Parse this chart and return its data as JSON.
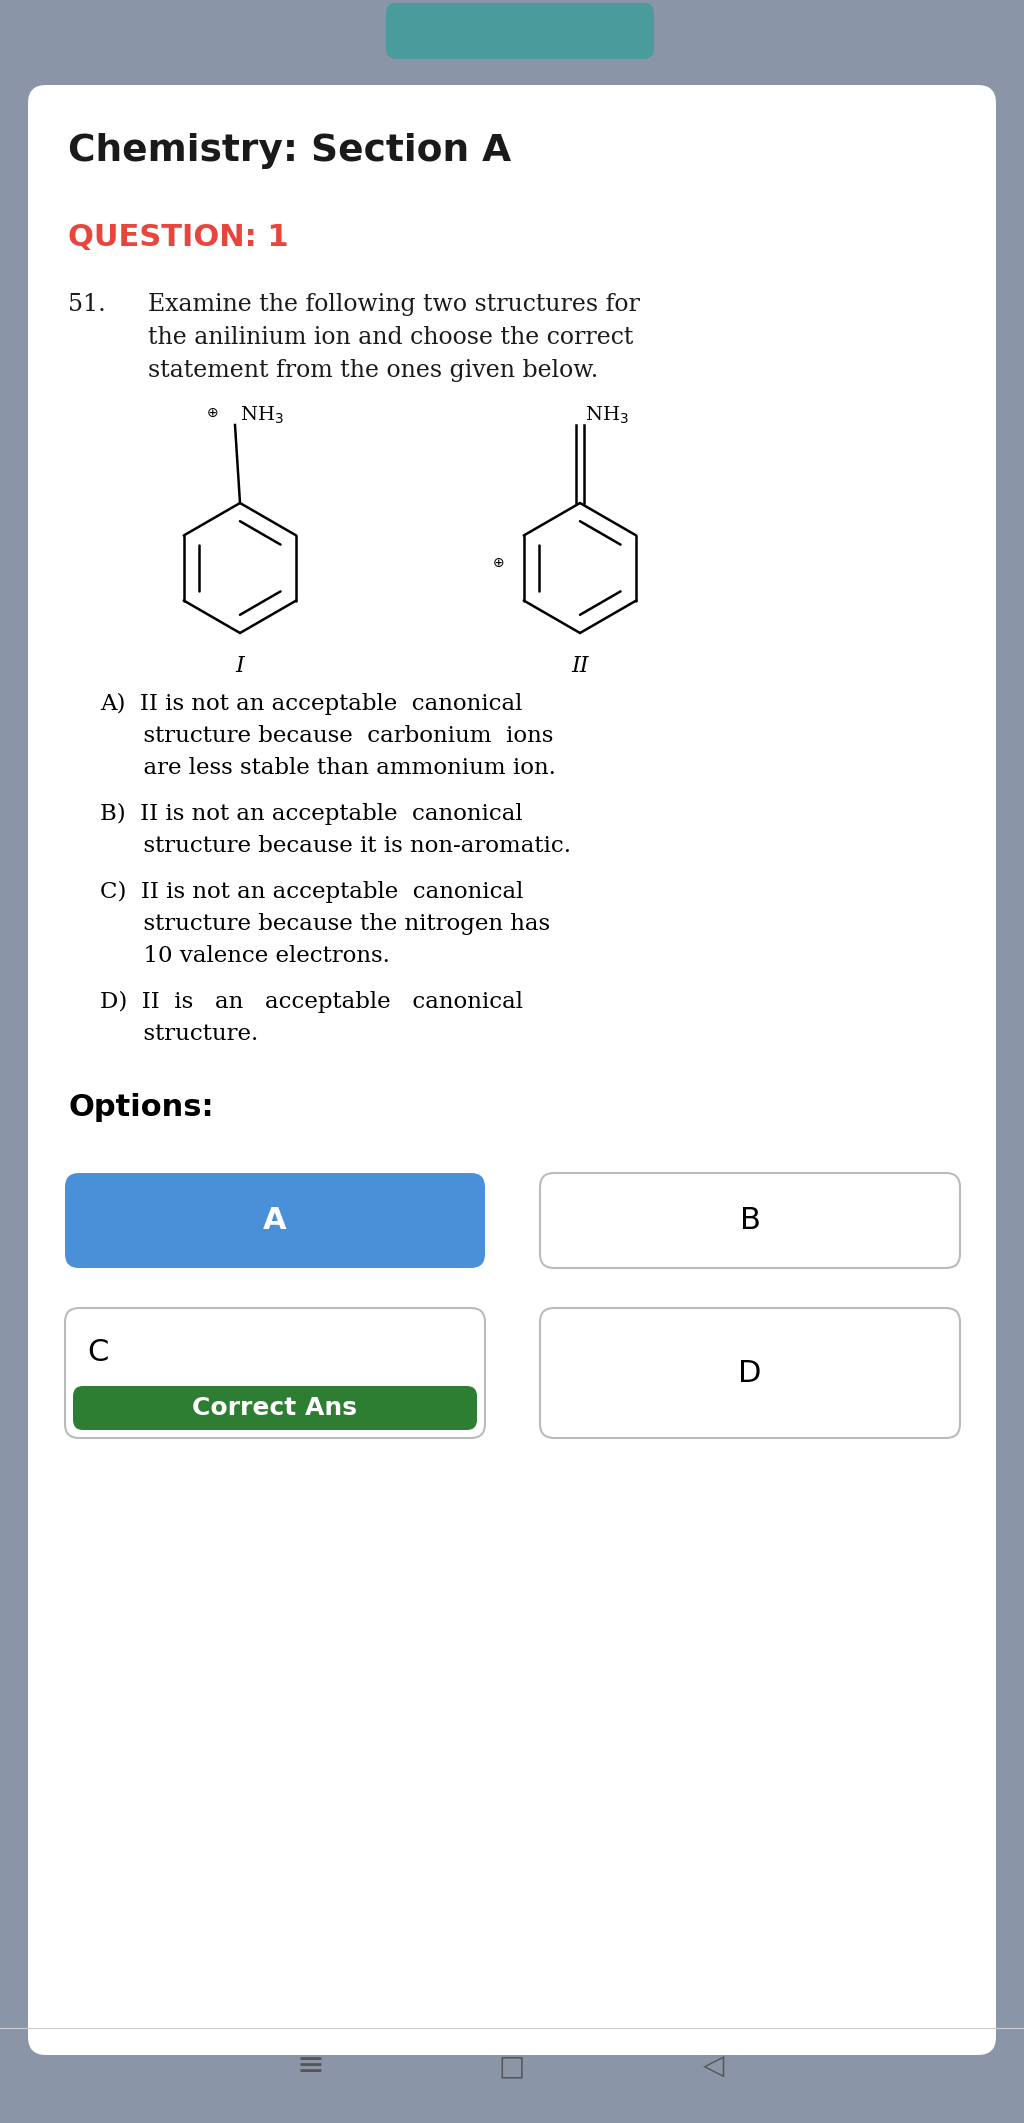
{
  "title": "Chemistry: Section A",
  "title_color": "#1a1a1a",
  "question_label": "QUESTION: 1",
  "question_color": "#E8453C",
  "question_number": "51.",
  "options_label": "Options:",
  "option_A": "A",
  "option_B": "B",
  "option_C": "C",
  "option_D": "D",
  "correct_ans_text": "Correct Ans",
  "answer_A_color": "#4A90D9",
  "answer_correct_color": "#2D7D32",
  "bg_color": "#ffffff",
  "outer_bg": "#8A96A8",
  "card_bg": "#ffffff",
  "teal_bar_color": "#4A9B9B",
  "struct_label_I": "I",
  "struct_label_II": "II"
}
